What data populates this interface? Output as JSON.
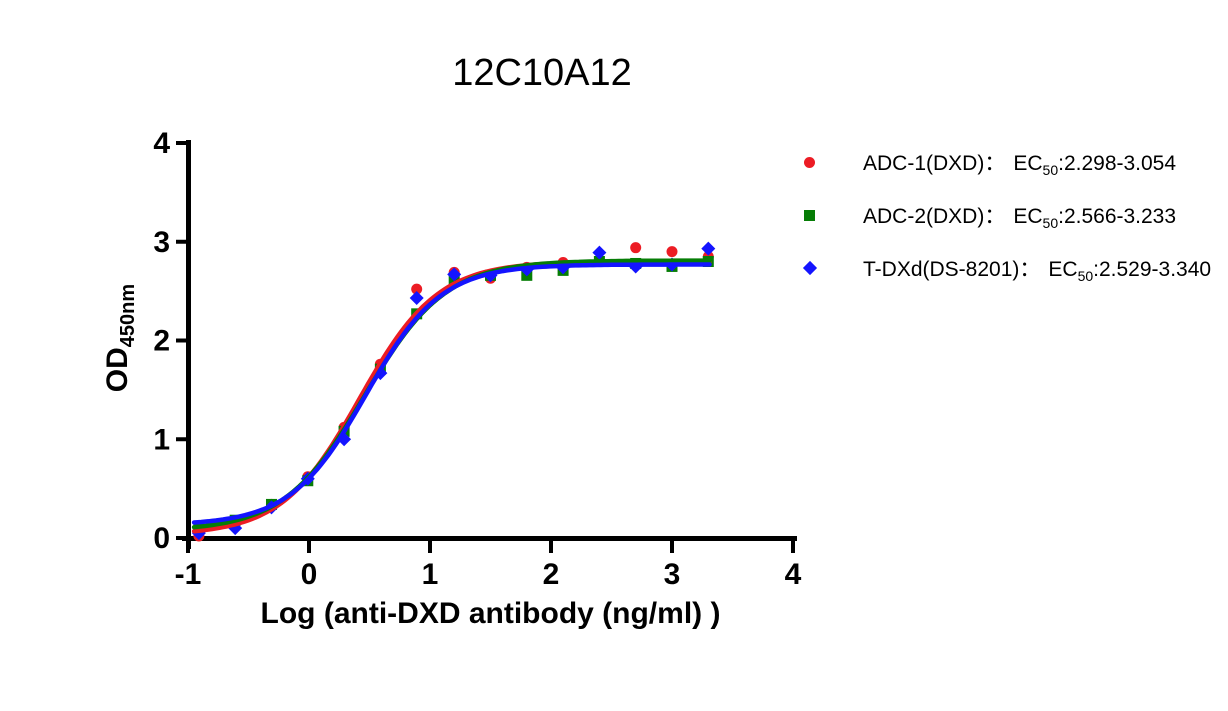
{
  "chart": {
    "title": "12C10A12",
    "xlabel": "Log (anti-DXD antibody (ng/ml) )",
    "ylabel_prefix": "OD",
    "ylabel_sub": "450nm"
  },
  "legend": {
    "items": [
      {
        "name": "ADC-1(DXD)：",
        "ec_prefix": "EC",
        "ec_sub": "50",
        "ec_value": ":2.298-3.054",
        "color": "#ec1c24",
        "marker": "circle-icon"
      },
      {
        "name": "ADC-2(DXD)：",
        "ec_prefix": "EC",
        "ec_sub": "50",
        "ec_value": ":2.566-3.233",
        "color": "#067d06",
        "marker": "square-icon"
      },
      {
        "name": "T-DXd(DS-8201)：",
        "ec_prefix": "EC",
        "ec_sub": "50",
        "ec_value": ":2.529-3.340",
        "color": "#1414ff",
        "marker": "diamond-icon"
      }
    ]
  },
  "chart_data": {
    "type": "scatter",
    "title": "12C10A12",
    "xlabel": "Log (anti-DXD antibody (ng/ml) )",
    "ylabel": "OD450nm",
    "xlim": [
      -1,
      4
    ],
    "ylim": [
      0,
      4
    ],
    "xticks": [
      -1,
      0,
      1,
      2,
      3,
      4
    ],
    "yticks": [
      0,
      1,
      2,
      3,
      4
    ],
    "grid": false,
    "legend_position": "right",
    "x": [
      -0.91,
      -0.61,
      -0.31,
      -0.01,
      0.29,
      0.59,
      0.89,
      1.2,
      1.5,
      1.8,
      2.1,
      2.4,
      2.7,
      3.0,
      3.3
    ],
    "curve_x_range": [
      -0.95,
      3.32
    ],
    "series": [
      {
        "name": "ADC-1(DXD)",
        "ec50_ci": "2.298-3.054",
        "color": "#ec1c24",
        "marker": "circle",
        "values": [
          0.02,
          0.16,
          0.34,
          0.62,
          1.12,
          1.76,
          2.52,
          2.69,
          2.63,
          2.74,
          2.79,
          2.8,
          2.94,
          2.9,
          2.85
        ],
        "fit": {
          "bottom": 0.03,
          "top": 2.8,
          "logec50": 0.42,
          "hill": 1.35
        }
      },
      {
        "name": "ADC-2(DXD)",
        "ec50_ci": "2.566-3.233",
        "color": "#067d06",
        "marker": "square",
        "values": [
          0.12,
          0.18,
          0.34,
          0.58,
          1.08,
          1.71,
          2.27,
          2.61,
          2.66,
          2.66,
          2.71,
          2.8,
          2.78,
          2.75,
          2.8
        ],
        "fit": {
          "bottom": 0.07,
          "top": 2.81,
          "logec50": 0.46,
          "hill": 1.3
        }
      },
      {
        "name": "T-DXd(DS-8201)",
        "ec50_ci": "2.529-3.340",
        "color": "#1414ff",
        "marker": "diamond",
        "values": [
          0.05,
          0.1,
          0.31,
          0.6,
          1.0,
          1.67,
          2.43,
          2.67,
          2.66,
          2.72,
          2.74,
          2.89,
          2.75,
          2.77,
          2.93
        ],
        "fit": {
          "bottom": 0.13,
          "top": 2.77,
          "logec50": 0.47,
          "hill": 1.4
        }
      }
    ]
  }
}
